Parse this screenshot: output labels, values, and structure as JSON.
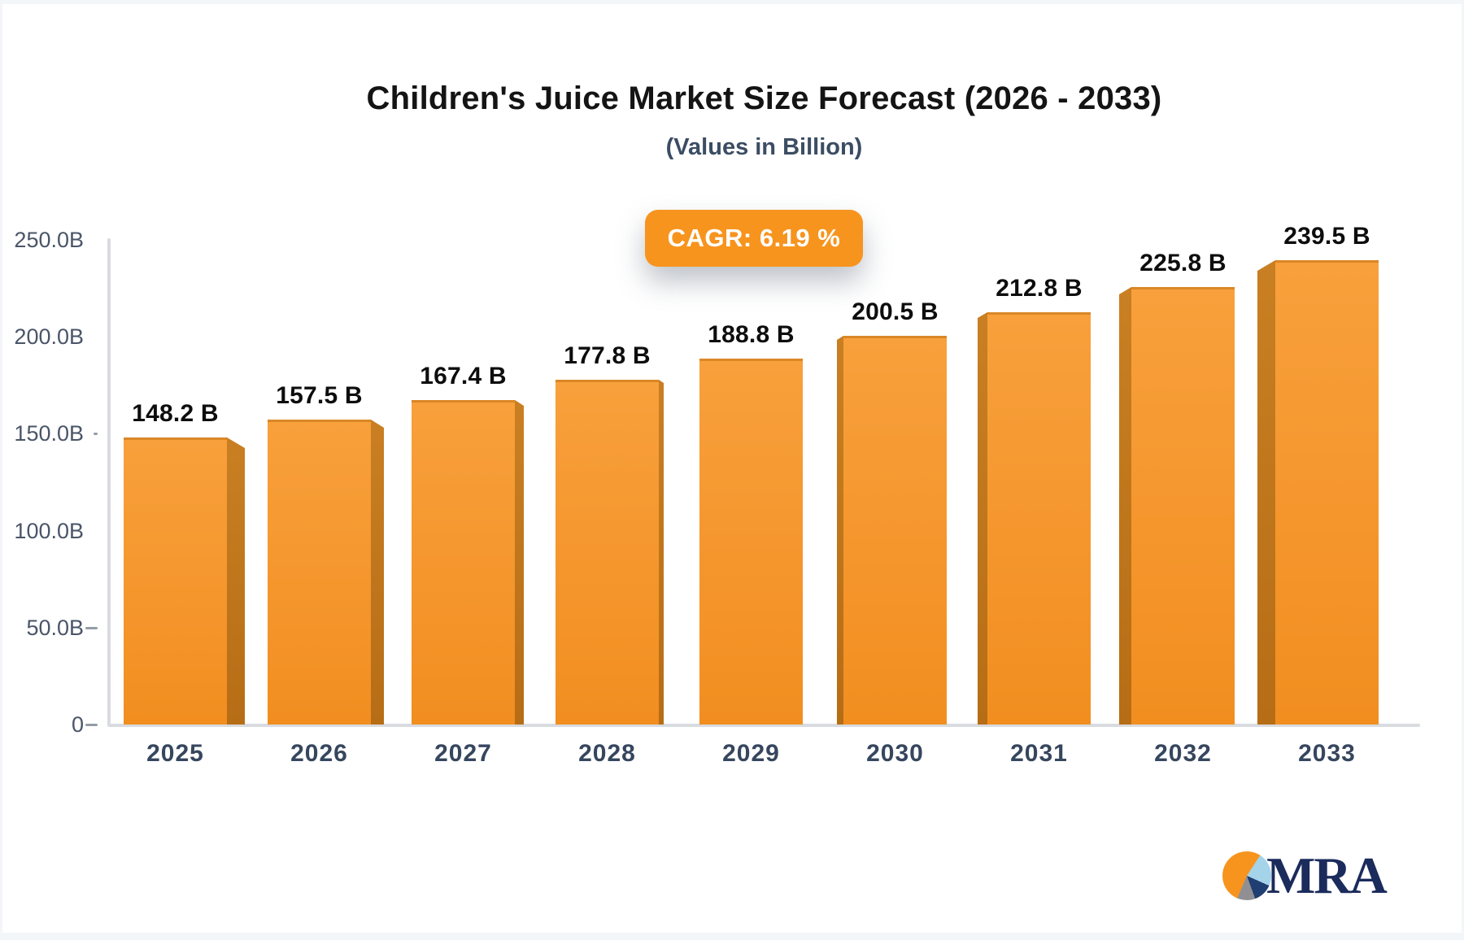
{
  "header": {
    "title": "Children's Juice Market Size Forecast (2026 - 2033)",
    "subtitle": "(Values in Billion)",
    "cagr_label": "CAGR: 6.19 %"
  },
  "chart_data": {
    "type": "bar",
    "title": "Children's Juice Market Size Forecast (2026 - 2033)",
    "subtitle": "(Values in Billion)",
    "categories": [
      "2025",
      "2026",
      "2027",
      "2028",
      "2029",
      "2030",
      "2031",
      "2032",
      "2033"
    ],
    "values": [
      148.2,
      157.5,
      167.4,
      177.8,
      188.8,
      200.5,
      212.8,
      225.8,
      239.5
    ],
    "value_labels": [
      "148.2 B",
      "157.5 B",
      "167.4 B",
      "177.8 B",
      "188.8 B",
      "200.5 B",
      "212.8 B",
      "225.8 B",
      "239.5 B"
    ],
    "y_tick_labels": [
      "250.0B",
      "200.0B",
      "150.0B",
      "100.0B",
      "50.0B",
      "0"
    ],
    "ylim": [
      0,
      250
    ],
    "xlabel": "",
    "ylabel": "",
    "grid": "off",
    "legend": "none",
    "annotation": "CAGR: 6.19 %",
    "bar_style": "3d-perspective"
  },
  "theme": {
    "accent": "#F7941E",
    "bar_face": "#F28E20",
    "bar_face_light": "#F8A03C",
    "bar_side": "#BD7318",
    "axis": "#D8DBDF",
    "value_text": "#0D0D0D",
    "axis_text": "#4A5568",
    "category_text": "#36465E",
    "brand_navy": "#1B2B5C"
  },
  "logo": {
    "text": "MRA",
    "pie_colors": [
      "#F7941E",
      "#A5D3E9",
      "#1F3E71",
      "#909094"
    ]
  }
}
